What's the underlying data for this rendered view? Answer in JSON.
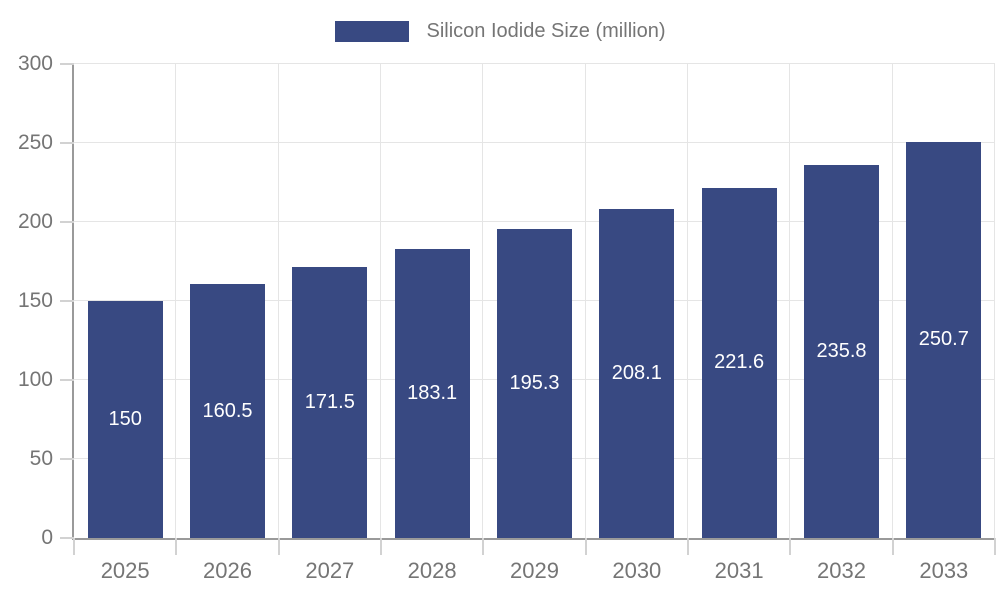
{
  "legend": {
    "label": "Silicon Iodide Size (million)"
  },
  "chart_data": {
    "type": "bar",
    "title": "",
    "xlabel": "",
    "ylabel": "",
    "categories": [
      "2025",
      "2026",
      "2027",
      "2028",
      "2029",
      "2030",
      "2031",
      "2032",
      "2033"
    ],
    "series": [
      {
        "name": "Silicon Iodide Size (million)",
        "values": [
          150,
          160.5,
          171.5,
          183.1,
          195.3,
          208.1,
          221.6,
          235.8,
          250.7
        ]
      }
    ],
    "value_labels": [
      "150",
      "160.5",
      "171.5",
      "183.1",
      "195.3",
      "208.1",
      "221.6",
      "235.8",
      "250.7"
    ],
    "ylim": [
      0,
      300
    ],
    "ytick_step": 50,
    "grid": "on",
    "legend_position": "top-center",
    "colors": {
      "bar": "#384982",
      "bar_label": "#ffffff",
      "axis_line": "#9a9a9a",
      "tick": "#d2d2d2",
      "gridline": "#e5e5e5",
      "axis_text": "#757575"
    },
    "bar_width_fraction": 0.73
  }
}
